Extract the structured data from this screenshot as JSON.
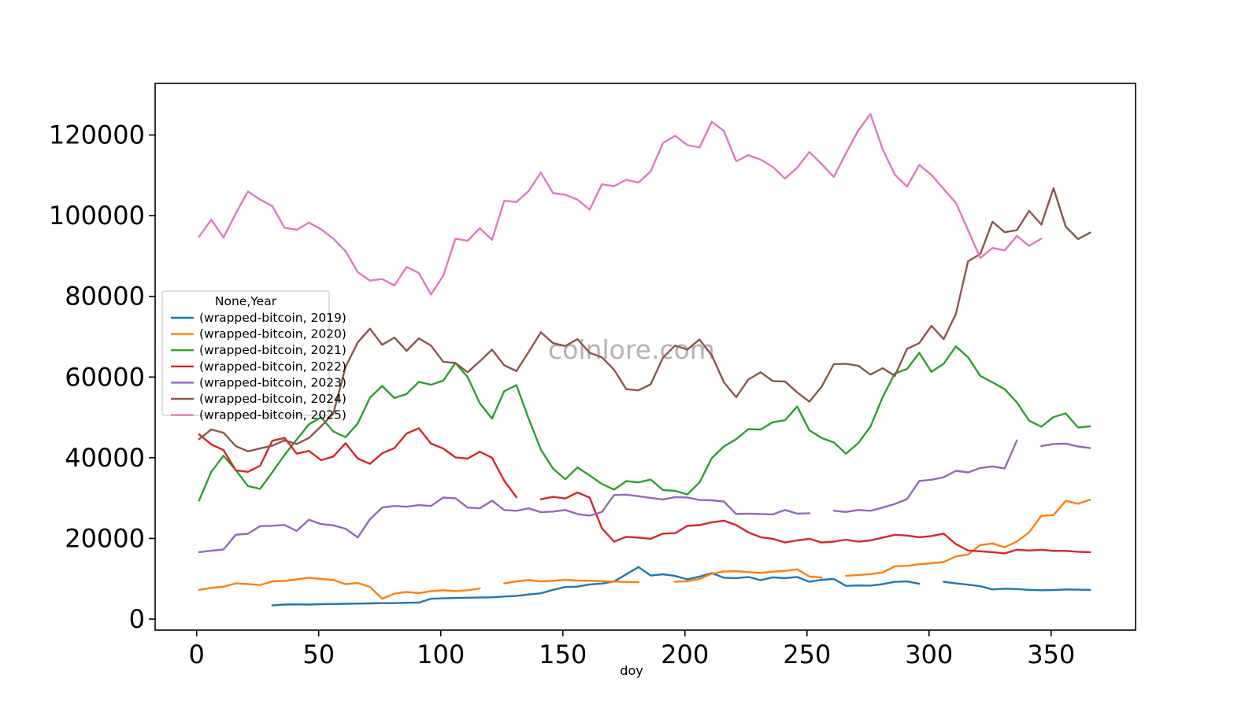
{
  "watermark": "coinlore.com",
  "chart_data": {
    "type": "line",
    "title": "",
    "xlabel": "doy",
    "ylabel": "",
    "grid": false,
    "xlim": [
      -17,
      384.6
    ],
    "ylim": [
      -2730,
      132795
    ],
    "x_ticks": [
      0,
      50,
      100,
      150,
      200,
      250,
      300,
      350
    ],
    "y_ticks": [
      0,
      20000,
      40000,
      60000,
      80000,
      100000,
      120000
    ],
    "legend": {
      "title": "None,Year",
      "position": "center-left"
    },
    "x": [
      1,
      6,
      11,
      16,
      21,
      26,
      31,
      36,
      41,
      46,
      51,
      56,
      61,
      66,
      71,
      76,
      81,
      86,
      91,
      96,
      101,
      106,
      111,
      116,
      121,
      126,
      131,
      136,
      141,
      146,
      151,
      156,
      161,
      166,
      171,
      176,
      181,
      186,
      191,
      196,
      201,
      206,
      211,
      216,
      221,
      226,
      231,
      236,
      241,
      246,
      251,
      256,
      261,
      266,
      271,
      276,
      281,
      286,
      291,
      296,
      301,
      306,
      311,
      316,
      321,
      326,
      331,
      336,
      341,
      346,
      351,
      356,
      361,
      366
    ],
    "series": [
      {
        "name": "(wrapped-bitcoin, 2019)",
        "year": "2019",
        "color": "#1f77b4",
        "values": [
          null,
          null,
          null,
          null,
          null,
          null,
          3400,
          3600,
          3650,
          3600,
          3700,
          3750,
          3800,
          3850,
          3900,
          3950,
          3950,
          4050,
          4100,
          5050,
          5150,
          5250,
          5300,
          5350,
          5400,
          5600,
          5750,
          6100,
          6400,
          7250,
          7950,
          8050,
          8600,
          8800,
          9350,
          11100,
          12900,
          10800,
          11100,
          10700,
          9850,
          10550,
          11400,
          10250,
          10150,
          10450,
          9650,
          10350,
          10150,
          10450,
          9250,
          9750,
          9950,
          8250,
          8350,
          8300,
          8650,
          9250,
          9350,
          8750,
          null,
          9250,
          8850,
          8550,
          8150,
          7350,
          7550,
          7450,
          7250,
          7150,
          7200,
          7350,
          7300,
          7250
        ]
      },
      {
        "name": "(wrapped-bitcoin, 2020)",
        "year": "2020",
        "color": "#ff7f0e",
        "values": [
          7250,
          7750,
          8050,
          8850,
          8700,
          8450,
          9350,
          9450,
          9850,
          10250,
          9950,
          9700,
          8650,
          8950,
          8000,
          5050,
          6300,
          6750,
          6450,
          6900,
          7150,
          6950,
          7150,
          7600,
          null,
          8850,
          9350,
          9700,
          9350,
          9500,
          9750,
          9550,
          9500,
          9400,
          9300,
          9200,
          9150,
          null,
          null,
          9250,
          9400,
          9950,
          11250,
          11800,
          11900,
          11650,
          11450,
          11750,
          11950,
          12350,
          10550,
          10300,
          null,
          10750,
          10900,
          11150,
          11550,
          13100,
          13200,
          13600,
          13850,
          14150,
          15550,
          16000,
          18350,
          18750,
          17800,
          19250,
          21500,
          25600,
          25800,
          29300,
          28600,
          29600
        ]
      },
      {
        "name": "(wrapped-bitcoin, 2021)",
        "year": "2021",
        "color": "#2ca02c",
        "values": [
          29400,
          36500,
          40500,
          37000,
          33000,
          32300,
          36400,
          40700,
          44500,
          48300,
          50000,
          46500,
          45100,
          48500,
          54900,
          57800,
          54800,
          55800,
          58800,
          58100,
          59100,
          63500,
          60000,
          53500,
          49700,
          56500,
          58000,
          49700,
          42000,
          37300,
          34700,
          37600,
          35600,
          33500,
          32100,
          34200,
          33900,
          34600,
          32000,
          31800,
          30900,
          33900,
          39900,
          42800,
          44600,
          47100,
          47000,
          48800,
          49300,
          52700,
          46800,
          44900,
          43800,
          41000,
          43600,
          47700,
          55000,
          60900,
          62000,
          66000,
          61300,
          63300,
          67600,
          64900,
          60300,
          58700,
          57000,
          53700,
          49200,
          47700,
          50100,
          51000,
          47500,
          47800
        ]
      },
      {
        "name": "(wrapped-bitcoin, 2022)",
        "year": "2022",
        "color": "#d62728",
        "values": [
          45800,
          43300,
          41900,
          36900,
          36500,
          38000,
          44200,
          44900,
          41000,
          41700,
          39400,
          40300,
          43600,
          39800,
          38500,
          41100,
          42400,
          46000,
          47300,
          43500,
          42300,
          40100,
          39800,
          41500,
          40000,
          34300,
          30200,
          null,
          29700,
          30300,
          29900,
          31400,
          30100,
          22500,
          19200,
          20400,
          20200,
          19900,
          21200,
          21300,
          23100,
          23300,
          24000,
          24400,
          23300,
          21500,
          20300,
          19900,
          19000,
          19500,
          19900,
          19000,
          19200,
          19700,
          19200,
          19500,
          20200,
          20900,
          20700,
          20300,
          20600,
          21200,
          18600,
          17000,
          16800,
          16600,
          16300,
          17200,
          17000,
          17200,
          16900,
          16900,
          16700,
          16600
        ]
      },
      {
        "name": "(wrapped-bitcoin, 2023)",
        "year": "2023",
        "color": "#9467bd",
        "values": [
          16600,
          16950,
          17250,
          20900,
          21150,
          23050,
          23150,
          23350,
          21850,
          24650,
          23550,
          23250,
          22400,
          20250,
          24750,
          27650,
          28050,
          27850,
          28250,
          28050,
          30150,
          29950,
          27650,
          27450,
          29350,
          27050,
          26850,
          27450,
          26500,
          26650,
          27050,
          26050,
          25650,
          26550,
          30750,
          30850,
          30450,
          30050,
          29650,
          30250,
          30150,
          29550,
          29450,
          29150,
          26050,
          26150,
          26050,
          25950,
          27050,
          26150,
          26250,
          null,
          26850,
          26550,
          27050,
          26850,
          27650,
          28550,
          29750,
          34250,
          34550,
          35150,
          36750,
          36350,
          37450,
          37850,
          37350,
          44300,
          null,
          42900,
          43400,
          43500,
          42800,
          42400
        ]
      },
      {
        "name": "(wrapped-bitcoin, 2024)",
        "year": "2024",
        "color": "#8c564b",
        "values": [
          44600,
          47000,
          46200,
          42900,
          41600,
          42300,
          43000,
          44300,
          43400,
          44900,
          47800,
          51000,
          62500,
          68600,
          72000,
          68000,
          69800,
          66500,
          69600,
          67800,
          63800,
          63500,
          61200,
          63900,
          66800,
          62900,
          61500,
          66200,
          71100,
          68400,
          67700,
          69400,
          66000,
          64900,
          61800,
          57000,
          56700,
          58200,
          64800,
          67800,
          66800,
          69300,
          65400,
          58700,
          55000,
          59400,
          61200,
          59000,
          58900,
          56200,
          53900,
          57600,
          63200,
          63300,
          62800,
          60600,
          62200,
          60300,
          67000,
          68400,
          72700,
          69400,
          75600,
          88700,
          90500,
          98500,
          95900,
          96400,
          101200,
          97800,
          106800,
          97300,
          94200,
          95800
        ]
      },
      {
        "name": "(wrapped-bitcoin, 2025)",
        "year": "2025",
        "color": "#e377c2",
        "values": [
          94800,
          99000,
          94600,
          100500,
          106000,
          104000,
          102400,
          97000,
          96500,
          98300,
          96600,
          94300,
          91200,
          86000,
          83900,
          84300,
          82700,
          87300,
          85800,
          80500,
          85100,
          94300,
          93800,
          96900,
          94000,
          103700,
          103400,
          106100,
          110700,
          105600,
          105200,
          104000,
          101500,
          107800,
          107300,
          108900,
          108200,
          111000,
          118000,
          119800,
          117500,
          116900,
          123300,
          121000,
          113500,
          115000,
          113900,
          112100,
          109200,
          111900,
          115800,
          112800,
          109600,
          115500,
          121100,
          125200,
          116500,
          110200,
          107200,
          112600,
          110100,
          106600,
          103200,
          96400,
          89500,
          92000,
          91400,
          95000,
          92500,
          94300,
          null,
          null,
          null,
          null
        ]
      }
    ]
  }
}
